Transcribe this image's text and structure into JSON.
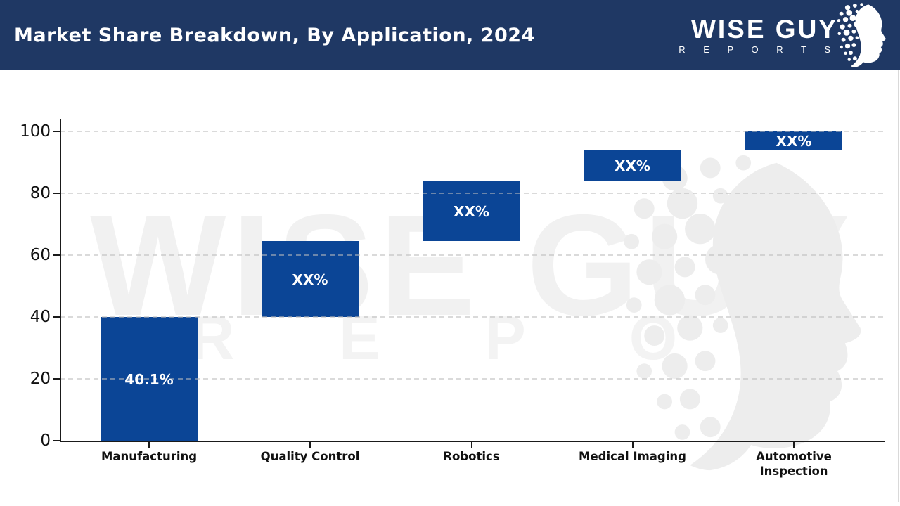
{
  "header": {
    "title": "Market Share Breakdown, By Application, 2024",
    "background_color": "#1f3864",
    "brand": {
      "name": "Wise Guy Reports",
      "line1": "WISE GUY",
      "line2": "R E P O R T S"
    }
  },
  "watermark": {
    "line1": "WISE GUY",
    "line2": "R E P O R T S"
  },
  "chart_data": {
    "type": "bar",
    "variant": "floating-segment-waterfall",
    "title": "Market Share Breakdown, By Application, 2024",
    "categories": [
      "Manufacturing",
      "Quality Control",
      "Robotics",
      "Medical Imaging",
      "Automotive Inspection"
    ],
    "segments": [
      {
        "category": "Manufacturing",
        "start": 0,
        "end": 40.1,
        "value": 40.1,
        "label": "40.1%"
      },
      {
        "category": "Quality Control",
        "start": 40.1,
        "end": 64.5,
        "value": 24.4,
        "label": "XX%"
      },
      {
        "category": "Robotics",
        "start": 64.5,
        "end": 84.2,
        "value": 19.7,
        "label": "XX%"
      },
      {
        "category": "Medical Imaging",
        "start": 84.2,
        "end": 94.0,
        "value": 9.8,
        "label": "XX%"
      },
      {
        "category": "Automotive Inspection",
        "start": 94.0,
        "end": 100.0,
        "value": 6.0,
        "label": "XX%"
      }
    ],
    "xlabel": "",
    "ylabel": "",
    "ylim": [
      0,
      100
    ],
    "yticks": [
      0,
      20,
      40,
      60,
      80,
      100
    ],
    "grid": "horizontal dashed",
    "legend": "none",
    "bar_color": "#0b4596",
    "bar_label_color": "#ffffff"
  }
}
